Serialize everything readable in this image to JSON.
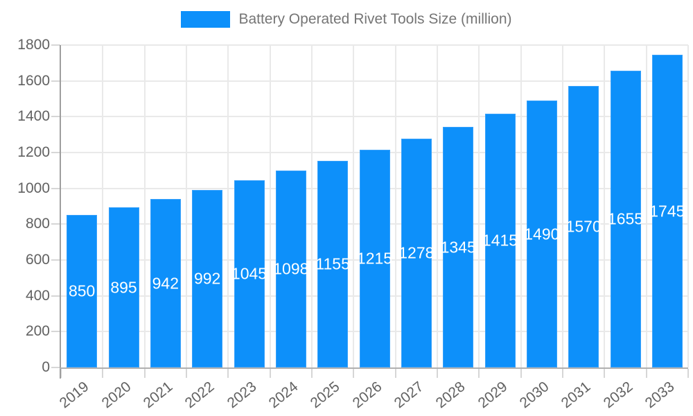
{
  "legend": {
    "label": "Battery Operated Rivet Tools Size (million)"
  },
  "chart_data": {
    "type": "bar",
    "title": "Battery Operated Rivet Tools Size (million)",
    "series_name": "Battery Operated Rivet Tools Size (million)",
    "categories": [
      "2019",
      "2020",
      "2021",
      "2022",
      "2023",
      "2024",
      "2025",
      "2026",
      "2027",
      "2028",
      "2029",
      "2030",
      "2031",
      "2032",
      "2033"
    ],
    "values": [
      850,
      895,
      942,
      992,
      1045,
      1098,
      1155,
      1215,
      1278,
      1345,
      1415,
      1490,
      1570,
      1655,
      1745
    ],
    "xlabel": "",
    "ylabel": "",
    "ylim": [
      0,
      1800
    ],
    "ytick_step": 200,
    "yticks": [
      0,
      200,
      400,
      600,
      800,
      1000,
      1200,
      1400,
      1600,
      1800
    ],
    "grid": "horizontal and vertical light-gray gridlines",
    "legend_position": "top-center",
    "value_labels": "white, centered inside bars",
    "x_label_rotation_deg": -39,
    "colors": {
      "bar_fill": "#0d90fa",
      "bar_edge": "#38a1fb",
      "value_label": "#ffffff",
      "axis_label": "#616161",
      "legend_text": "#757575",
      "gridline": "#e9e9e9",
      "tick": "#d6d6d6",
      "y_axis_line": "#9e9e9e",
      "x_axis_line": "#b0b0b0",
      "background": "#ffffff"
    }
  }
}
